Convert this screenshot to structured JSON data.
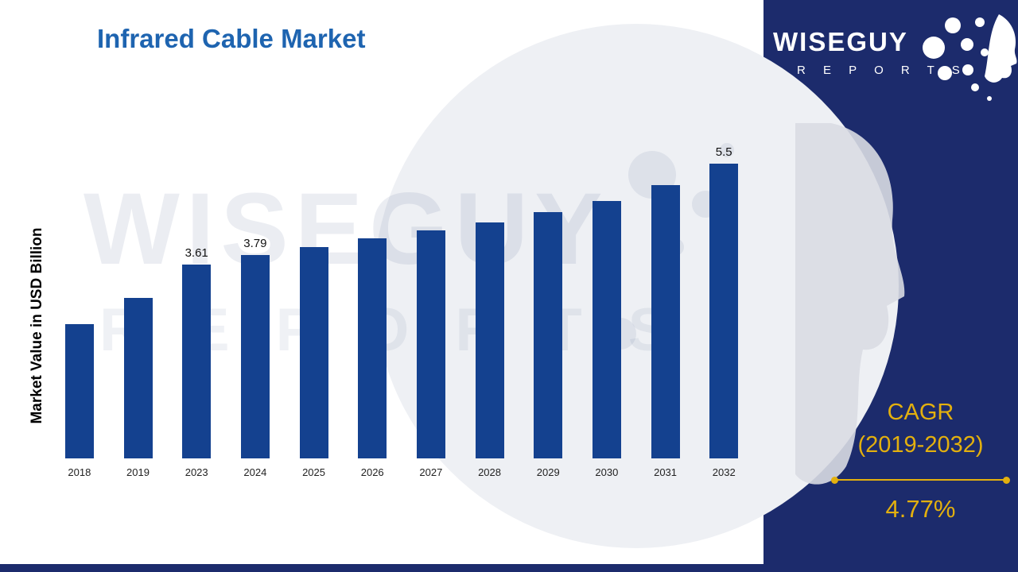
{
  "title": "Infrared Cable Market",
  "ylabel": "Market Value in USD Billion",
  "watermark": {
    "line1": "WISEGUY",
    "line2": "REPORTS"
  },
  "logo": {
    "line1": "WISEGUY",
    "line2": "R E P O R T S"
  },
  "cagr": {
    "label": "CAGR",
    "range": "(2019-2032)",
    "value": "4.77%"
  },
  "colors": {
    "bar": "#14418f",
    "title": "#1e64b0",
    "panel": "#1c2b6c",
    "accent": "#e3b00e",
    "circle": "#eef0f4"
  },
  "chart_data": {
    "type": "bar",
    "title": "Infrared Cable Market",
    "xlabel": "",
    "ylabel": "Market Value in USD Billion",
    "categories": [
      "2018",
      "2019",
      "2023",
      "2024",
      "2025",
      "2026",
      "2027",
      "2028",
      "2029",
      "2030",
      "2031",
      "2032"
    ],
    "values": [
      2.5,
      3.0,
      3.61,
      3.79,
      3.95,
      4.1,
      4.25,
      4.4,
      4.6,
      4.8,
      5.1,
      5.5
    ],
    "data_labels": [
      "",
      "",
      "3.61",
      "3.79",
      "",
      "",
      "",
      "",
      "",
      "",
      "",
      "5.5"
    ],
    "ylim": [
      0,
      6.3
    ],
    "grid": false,
    "legend": false,
    "bar_color": "#14418f"
  }
}
